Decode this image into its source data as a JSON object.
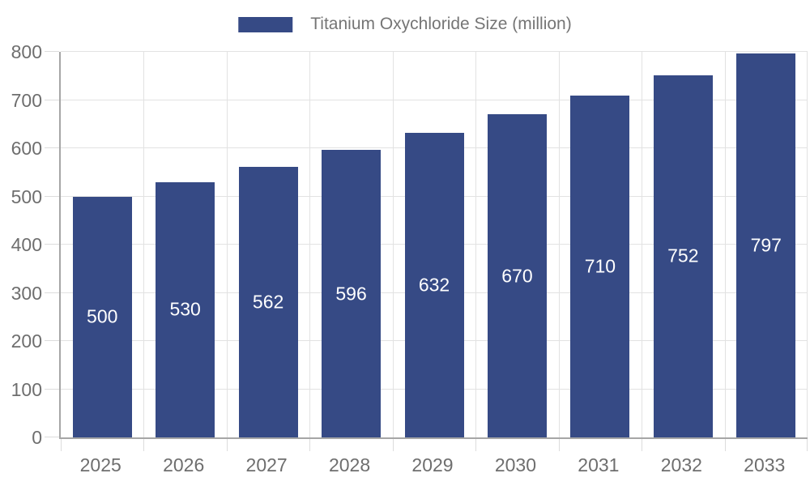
{
  "chart_data": {
    "type": "bar",
    "title": "Titanium Oxychloride Size (million)",
    "categories": [
      "2025",
      "2026",
      "2027",
      "2028",
      "2029",
      "2030",
      "2031",
      "2032",
      "2033"
    ],
    "values": [
      500,
      530,
      562,
      596,
      632,
      670,
      710,
      752,
      797
    ],
    "series": [
      {
        "name": "Titanium Oxychloride Size (million)",
        "values": [
          500,
          530,
          562,
          596,
          632,
          670,
          710,
          752,
          797
        ]
      }
    ],
    "xlabel": "",
    "ylabel": "",
    "ylim": [
      0,
      800
    ],
    "yticks": [
      0,
      100,
      200,
      300,
      400,
      500,
      600,
      700,
      800
    ],
    "grid": true,
    "legend_position": "top",
    "value_labels": "inside-center"
  },
  "colors": {
    "bar": "#364a85",
    "grid": "#e2e2e2",
    "tick": "#dcdcdc",
    "axis_line": "#a6a6a6",
    "axis_text": "#6e6e6e",
    "legend_text": "#757575",
    "value_label": "#ffffff",
    "background": "#ffffff"
  }
}
